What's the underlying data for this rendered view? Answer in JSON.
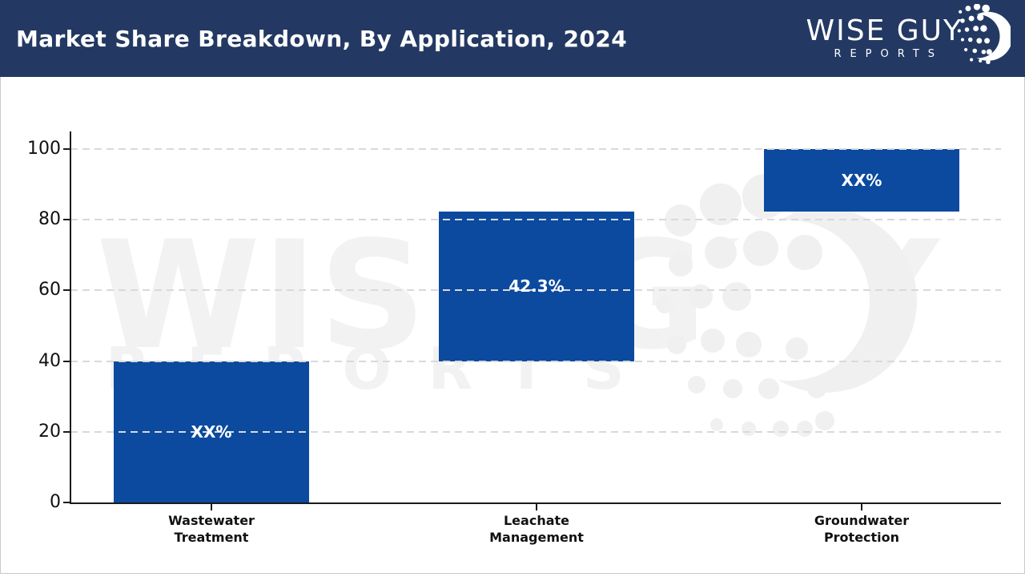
{
  "header": {
    "bg_color": "#233963",
    "title": "Market Share Breakdown, By Application, 2024",
    "logo": {
      "line1": "WISE GUY",
      "line2": "REPORTS"
    }
  },
  "watermark": {
    "line1": "WISE GUY",
    "line2": "REPORTS"
  },
  "chart_data": {
    "type": "bar",
    "subtype": "waterfall-stacked-progression",
    "title": "Market Share Breakdown, By Application, 2024",
    "categories": [
      "Wastewater Treatment",
      "Leachate Management",
      "Groundwater Protection"
    ],
    "bars": [
      {
        "category": [
          "Wastewater",
          "Treatment"
        ],
        "start": 0,
        "end": 40,
        "label": "XX%"
      },
      {
        "category": [
          "Leachate",
          "Management"
        ],
        "start": 40,
        "end": 82.3,
        "value": 42.3,
        "label": "42.3%"
      },
      {
        "category": [
          "Groundwater",
          "Protection"
        ],
        "start": 82.3,
        "end": 100,
        "label": "XX%"
      }
    ],
    "ylim": [
      0,
      100
    ],
    "yticks": [
      0,
      20,
      40,
      60,
      80,
      100
    ],
    "xlabel": "",
    "ylabel": "",
    "legend": "none",
    "grid": "horizontal-dashed-above-bars",
    "bar_color": "#0b4a9f",
    "grid_color": "#d9d9d9",
    "axis_color": "#1a1a1a",
    "label_color": "#ffffff"
  }
}
